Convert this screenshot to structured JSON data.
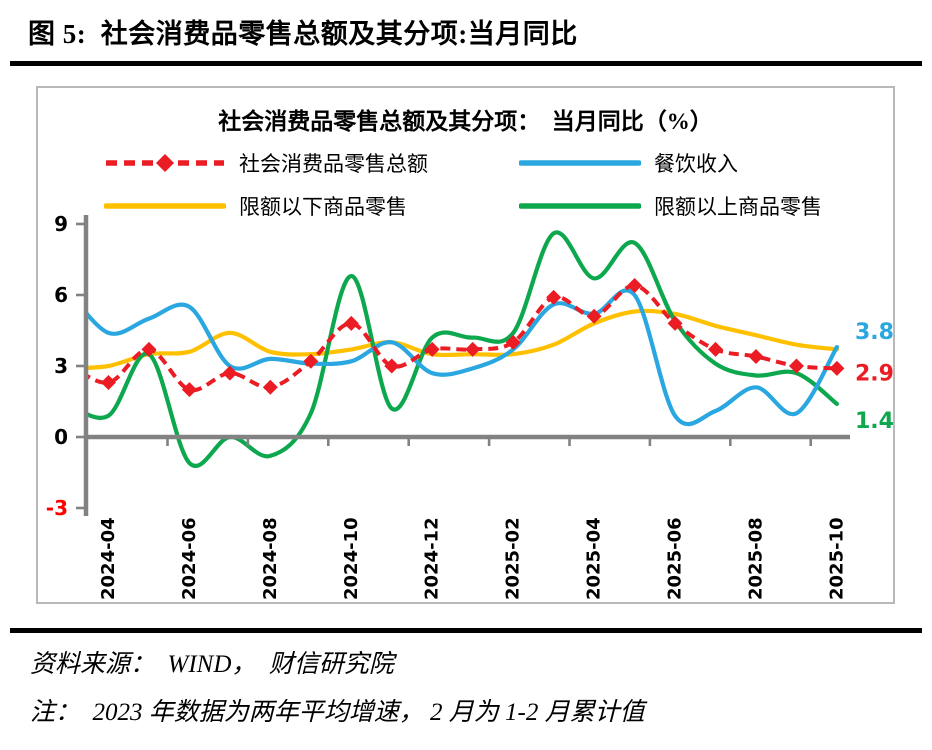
{
  "figure": {
    "title": "图 5:  社会消费品零售总额及其分项:当月同比"
  },
  "chart": {
    "title": "社会消费品零售总额及其分项：  当月同比（%）"
  },
  "chart_data": {
    "type": "line",
    "title": "社会消费品零售总额及其分项： 当月同比（%）",
    "xlabel": "",
    "ylabel": "",
    "unit": "%",
    "x": [
      "2024-03",
      "2024-04",
      "2024-05",
      "2024-06",
      "2024-07",
      "2024-08",
      "2024-09",
      "2024-10",
      "2024-11",
      "2024-12",
      "2025-01",
      "2025-02",
      "2025-03",
      "2025-04",
      "2025-05",
      "2025-06",
      "2025-07",
      "2025-08",
      "2025-09",
      "2025-10"
    ],
    "x_tick_labels": [
      "2024-04",
      "2024-06",
      "2024-08",
      "2024-10",
      "2024-12",
      "2025-02",
      "2025-04",
      "2025-06",
      "2025-08",
      "2025-10"
    ],
    "ylim": [
      -3,
      9
    ],
    "yticks": [
      9,
      6,
      3,
      0,
      -3
    ],
    "grid": false,
    "legend_position": "top",
    "axis_color": "#828282",
    "negative_tick_color": "#ff0000",
    "series": [
      {
        "name": "社会消费品零售总额",
        "color": "#eb1c24",
        "style": "dashed",
        "marker": "diamond",
        "values": [
          3.1,
          2.3,
          3.7,
          2.0,
          2.7,
          2.1,
          3.2,
          4.8,
          3.0,
          3.7,
          3.7,
          4.0,
          5.9,
          5.1,
          6.4,
          4.8,
          3.7,
          3.4,
          3.0,
          2.9
        ],
        "end_label": "2.9"
      },
      {
        "name": "餐饮收入",
        "color": "#2aa7e0",
        "style": "solid",
        "marker": "none",
        "values": [
          6.2,
          4.4,
          5.0,
          5.5,
          3.0,
          3.3,
          3.1,
          3.2,
          4.0,
          2.7,
          2.9,
          3.7,
          5.6,
          5.2,
          6.0,
          0.9,
          1.1,
          2.1,
          1.0,
          3.8
        ],
        "end_label": "3.8"
      },
      {
        "name": "限额以下商品零售",
        "color": "#ffc000",
        "style": "solid",
        "marker": "none",
        "values": [
          2.9,
          3.0,
          3.5,
          3.6,
          4.4,
          3.6,
          3.5,
          3.7,
          4.0,
          3.5,
          3.5,
          3.5,
          3.9,
          4.8,
          5.3,
          5.2,
          4.7,
          4.3,
          3.9,
          3.7
        ],
        "end_label": ""
      },
      {
        "name": "限额以上商品零售",
        "color": "#0da84e",
        "style": "solid",
        "marker": "none",
        "values": [
          1.4,
          0.9,
          3.5,
          -1.1,
          0.0,
          -0.8,
          1.0,
          6.8,
          1.2,
          4.2,
          4.2,
          4.4,
          8.6,
          6.7,
          8.2,
          4.9,
          3.1,
          2.6,
          2.7,
          1.4
        ],
        "end_label": "1.4"
      }
    ]
  },
  "footer": {
    "source": "资料来源：  WIND，  财信研究院",
    "note": "注：  2023 年数据为两年平均增速， 2 月为 1-2 月累计值"
  }
}
